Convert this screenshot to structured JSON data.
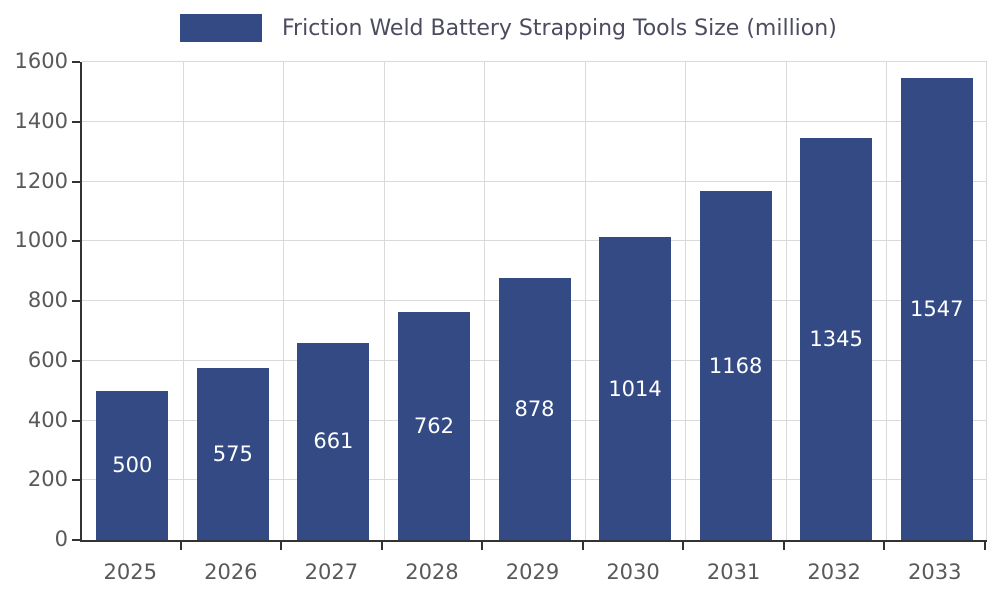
{
  "chart_data": {
    "type": "bar",
    "title": "Friction Weld Battery Strapping Tools Size (million)",
    "categories": [
      "2025",
      "2026",
      "2027",
      "2028",
      "2029",
      "2030",
      "2031",
      "2032",
      "2033"
    ],
    "values": [
      500,
      575,
      661,
      762,
      878,
      1014,
      1168,
      1345,
      1547
    ],
    "xlabel": "",
    "ylabel": "",
    "ylim": [
      0,
      1600
    ],
    "yticks": [
      0,
      200,
      400,
      600,
      800,
      1000,
      1200,
      1400,
      1600
    ],
    "grid": true,
    "legend_position": "top",
    "bar_color": "#334a85",
    "value_label_color": "#ffffff",
    "axis_text_color": "#58595b",
    "title_color": "#4c4c60",
    "gridline_color": "#d9d9d9"
  }
}
